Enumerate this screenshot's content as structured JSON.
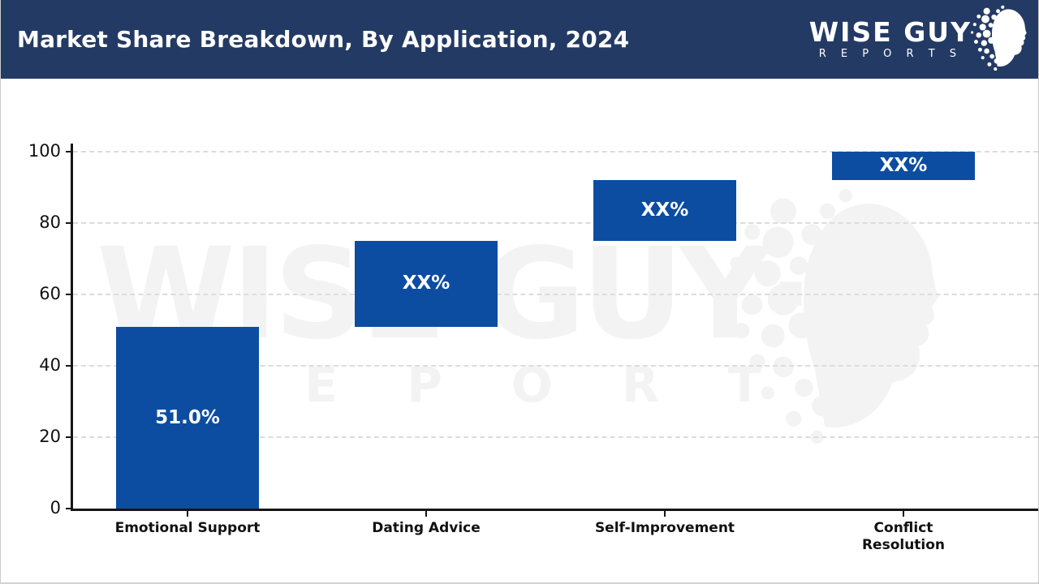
{
  "header": {
    "title": "Market Share Breakdown, By Application, 2024",
    "logo": {
      "line1": "WISE GUY",
      "line2": "R E P O R T S"
    }
  },
  "watermark": {
    "line1": "WISE GUY·",
    "line2": "R E P O R T S"
  },
  "colors": {
    "header_bg": "#233a64",
    "bar": "#0c4da2",
    "bar_label": "#ffffff",
    "grid": "#dcdcdc",
    "axis": "#151515",
    "watermark": "#f3f3f3",
    "title_text": "#ffffff"
  },
  "chart_data": {
    "type": "bar",
    "subtype": "waterfall",
    "title": "Market Share Breakdown, By Application, 2024",
    "categories": [
      "Emotional Support",
      "Dating Advice",
      "Self-Improvement",
      "Conflict Resolution"
    ],
    "category_lines": [
      [
        "Emotional Support"
      ],
      [
        "Dating Advice"
      ],
      [
        "Self-Improvement"
      ],
      [
        "Conflict",
        "Resolution"
      ]
    ],
    "segments": [
      {
        "category": "Emotional Support",
        "start": 0,
        "end": 51,
        "label": "51.0%"
      },
      {
        "category": "Dating Advice",
        "start": 51,
        "end": 75,
        "label": "XX%"
      },
      {
        "category": "Self-Improvement",
        "start": 75,
        "end": 92,
        "label": "XX%"
      },
      {
        "category": "Conflict Resolution",
        "start": 92,
        "end": 100,
        "label": "XX%"
      }
    ],
    "ylim": [
      0,
      100
    ],
    "yticks": [
      0,
      20,
      40,
      60,
      80,
      100
    ],
    "xlabel": "",
    "ylabel": "",
    "grid": "horizontal-dashed",
    "legend": "none"
  }
}
